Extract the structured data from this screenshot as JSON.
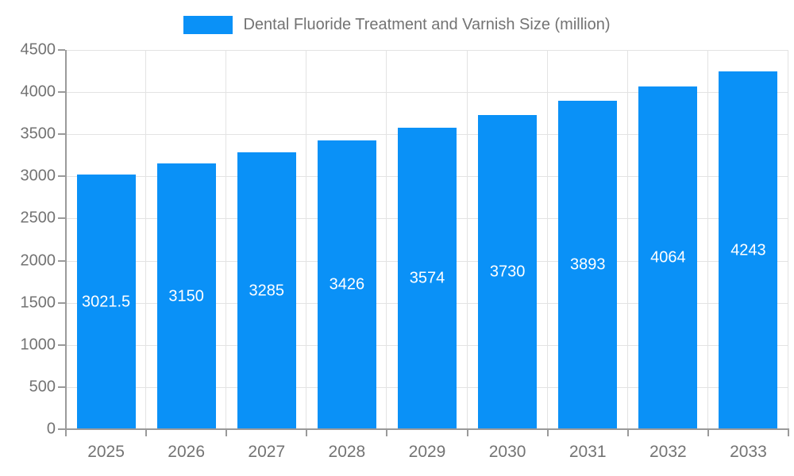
{
  "chart_data": {
    "type": "bar",
    "legend_label": "Dental Fluoride Treatment and Varnish Size (million)",
    "legend_position": "top-center",
    "categories": [
      "2025",
      "2026",
      "2027",
      "2028",
      "2029",
      "2030",
      "2031",
      "2032",
      "2033"
    ],
    "values": [
      3021.5,
      3150,
      3285,
      3426,
      3574,
      3730,
      3893,
      4064,
      4243
    ],
    "value_labels": [
      "3021.5",
      "3150",
      "3285",
      "3426",
      "3574",
      "3730",
      "3893",
      "4064",
      "4243"
    ],
    "xlabel": "",
    "ylabel": "",
    "ylim": [
      0,
      4500
    ],
    "y_ticks": [
      0,
      500,
      1000,
      1500,
      2000,
      2500,
      3000,
      3500,
      4000,
      4500
    ],
    "grid": true,
    "colors": {
      "bar": "#0a91f7",
      "bar_value_text": "#ffffff",
      "axis_text": "#737373",
      "grid_line": "#e3e3e3",
      "axis_line": "#9a9a9a",
      "background": "#ffffff"
    }
  }
}
